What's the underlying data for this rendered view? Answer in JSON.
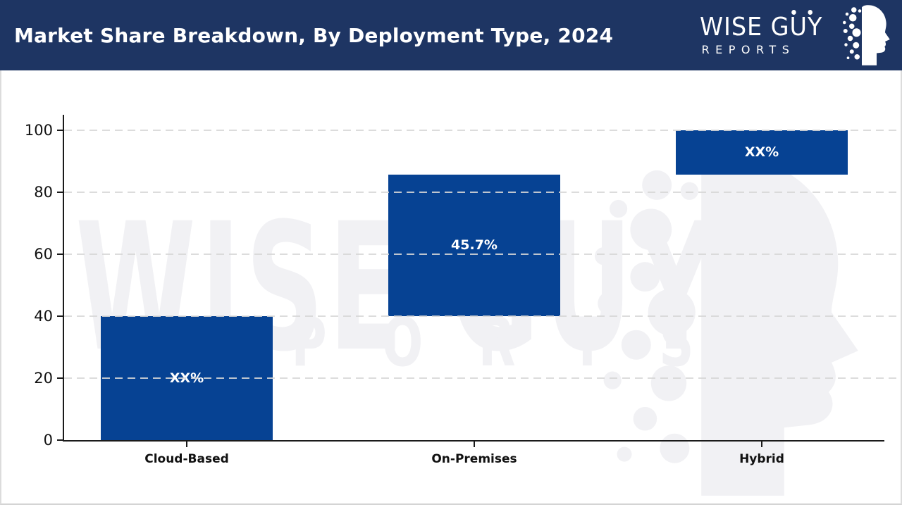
{
  "header": {
    "bg_color": "#1e3563",
    "logo": {
      "line1": "WISE GUY",
      "line2": "REPORTS"
    }
  },
  "watermark": {
    "line1": "WISE GUY",
    "line2": "R E P O R T S"
  },
  "chart_data": {
    "type": "bar",
    "variant": "floating-segment waterfall of market share",
    "title": "Market Share Breakdown, By Deployment Type, 2024",
    "categories": [
      "Cloud-Based",
      "On-Premises",
      "Hybrid"
    ],
    "segments": [
      {
        "category": "Cloud-Based",
        "start": 0,
        "end": 40,
        "label": "XX%"
      },
      {
        "category": "On-Premises",
        "start": 40,
        "end": 85.7,
        "label": "45.7%"
      },
      {
        "category": "Hybrid",
        "start": 85.7,
        "end": 100,
        "label": "XX%"
      }
    ],
    "yticks": [
      0,
      20,
      40,
      60,
      80,
      100
    ],
    "ylim": [
      0,
      105
    ],
    "xlabel": "",
    "ylabel": "",
    "grid": true,
    "legend": false,
    "bar_color": "#064293",
    "label_color": "#ffffff",
    "axis_color": "#1a1a1a",
    "gridline_color": "#d7d7d7"
  }
}
